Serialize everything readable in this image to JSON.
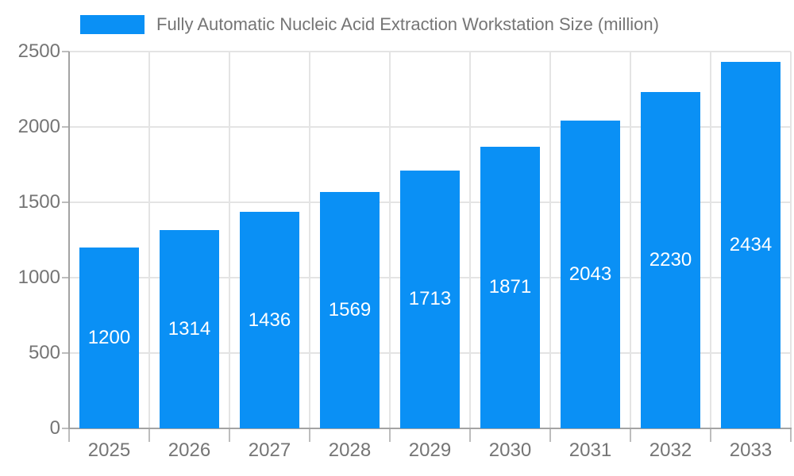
{
  "legend": {
    "label": "Fully Automatic Nucleic Acid Extraction Workstation Size (million)"
  },
  "chart_data": {
    "type": "bar",
    "title": "Fully Automatic Nucleic Acid Extraction Workstation Size (million)",
    "categories": [
      "2025",
      "2026",
      "2027",
      "2028",
      "2029",
      "2030",
      "2031",
      "2032",
      "2033"
    ],
    "values": [
      1200,
      1314,
      1436,
      1569,
      1713,
      1871,
      2043,
      2230,
      2434
    ],
    "xlabel": "",
    "ylabel": "",
    "ylim": [
      0,
      2500
    ],
    "yticks": [
      0,
      500,
      1000,
      1500,
      2000,
      2500
    ],
    "grid": true,
    "legend_position": "top",
    "bar_color": "#0a90f5",
    "value_label_color": "#ffffff",
    "tick_label_color": "#757575",
    "grid_color": "#e4e4e4",
    "axis_color": "#a3a3a3"
  }
}
